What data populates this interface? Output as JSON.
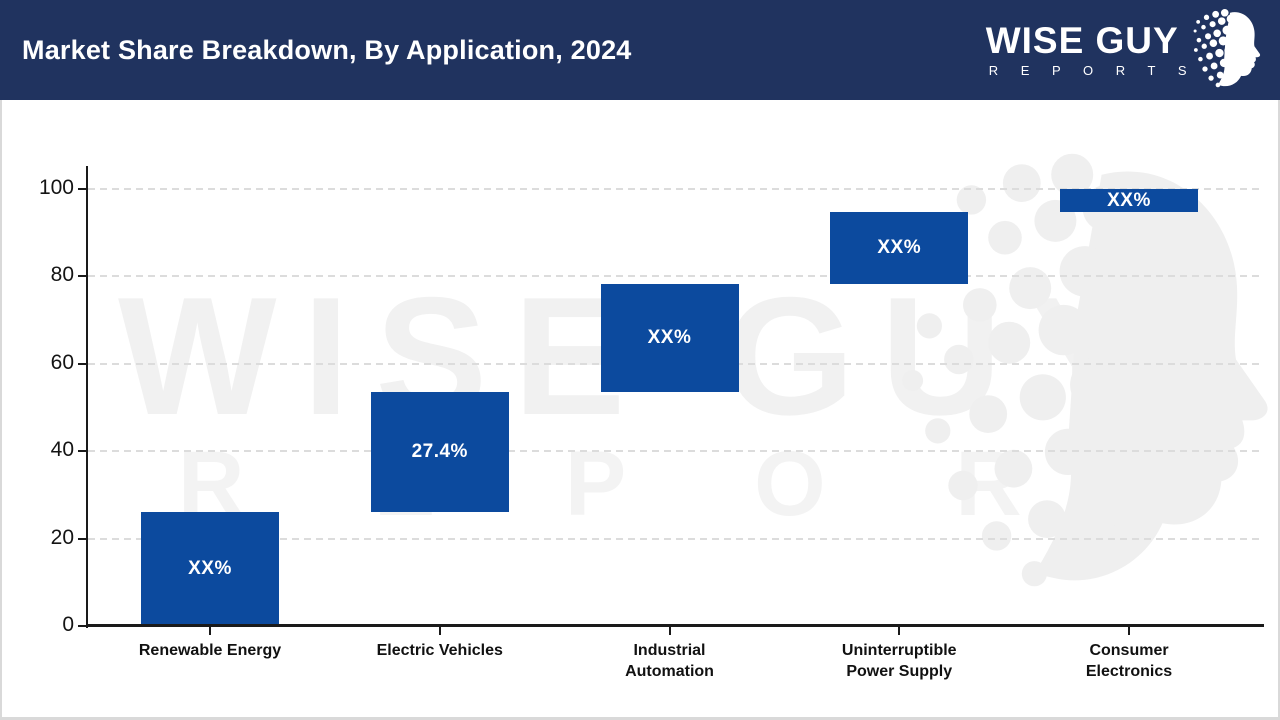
{
  "header": {
    "title": "Market Share Breakdown, By Application, 2024",
    "logo": {
      "line1": "WISE GUY",
      "line2": "R E P O R T S"
    }
  },
  "watermark": {
    "line1": "WISE GUY",
    "line2": "R E P O R T S"
  },
  "chart_data": {
    "type": "bar",
    "variant": "floating-waterfall",
    "title": "Market Share Breakdown, By Application, 2024",
    "xlabel": "",
    "ylabel": "",
    "ylim": [
      0,
      105
    ],
    "yticks": [
      0,
      20,
      40,
      60,
      80,
      100
    ],
    "grid": "horizontal-dashed",
    "legend": "none",
    "bar_color": "#0c4a9e",
    "categories": [
      "Renewable Energy",
      "Electric Vehicles",
      "Industrial\nAutomation",
      "Uninterruptible\nPower Supply",
      "Consumer\nElectronics"
    ],
    "segments": [
      {
        "category": "Renewable Energy",
        "from": 0,
        "to": 26,
        "label": "XX%"
      },
      {
        "category": "Electric Vehicles",
        "from": 26,
        "to": 53.4,
        "label": "27.4%"
      },
      {
        "category": "Industrial\nAutomation",
        "from": 53.4,
        "to": 78.2,
        "label": "XX%"
      },
      {
        "category": "Uninterruptible\nPower Supply",
        "from": 78.2,
        "to": 94.7,
        "label": "XX%"
      },
      {
        "category": "Consumer\nElectronics",
        "from": 94.7,
        "to": 99.8,
        "label": "XX%"
      }
    ]
  },
  "colors": {
    "header_bg": "#20335f",
    "bar": "#0c4a9e",
    "grid": "#dcdcdc",
    "axis": "#1a1a1a",
    "watermark": "#f1f1f1",
    "frame": "#d9d9d9"
  }
}
